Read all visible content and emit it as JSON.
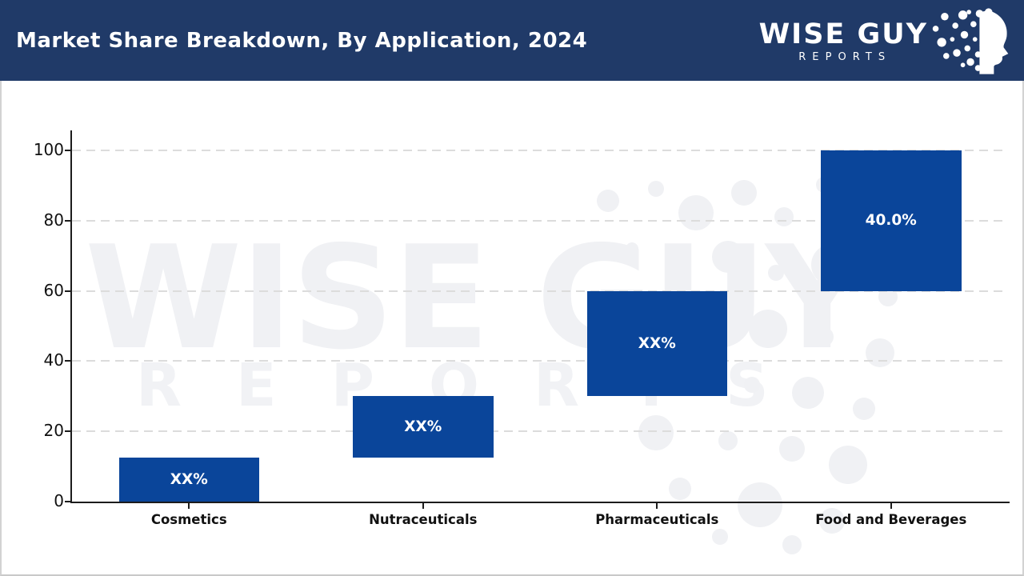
{
  "header": {
    "title": "Market Share Breakdown, By Application, 2024",
    "logo": {
      "line1": "WISE GUY",
      "line2": "REPORTS"
    }
  },
  "watermark": {
    "line1": "WISE GUY",
    "line2": "REPORTS"
  },
  "colors": {
    "header_bg": "#203a68",
    "bar": "#0a459a",
    "axis": "#1c1c1c",
    "grid": "#dcdcdc",
    "bar_label": "#ffffff",
    "watermark": "#f0f1f4"
  },
  "chart_data": {
    "type": "bar",
    "subtype": "waterfall",
    "title": "Market Share Breakdown, By Application, 2024",
    "xlabel": "",
    "ylabel": "",
    "categories": [
      "Cosmetics",
      "Nutraceuticals",
      "Pharmaceuticals",
      "Food and Beverages"
    ],
    "segments": [
      {
        "category": "Cosmetics",
        "start": 0,
        "end": 12.5,
        "label": "XX%"
      },
      {
        "category": "Nutraceuticals",
        "start": 12.5,
        "end": 30,
        "label": "XX%"
      },
      {
        "category": "Pharmaceuticals",
        "start": 30,
        "end": 60,
        "label": "XX%"
      },
      {
        "category": "Food and Beverages",
        "start": 60,
        "end": 100,
        "label": "40.0%"
      }
    ],
    "yticks": [
      0,
      20,
      40,
      60,
      80,
      100
    ],
    "ylim": [
      0,
      105
    ],
    "grid": "dashed-horizontal",
    "legend": "none"
  }
}
